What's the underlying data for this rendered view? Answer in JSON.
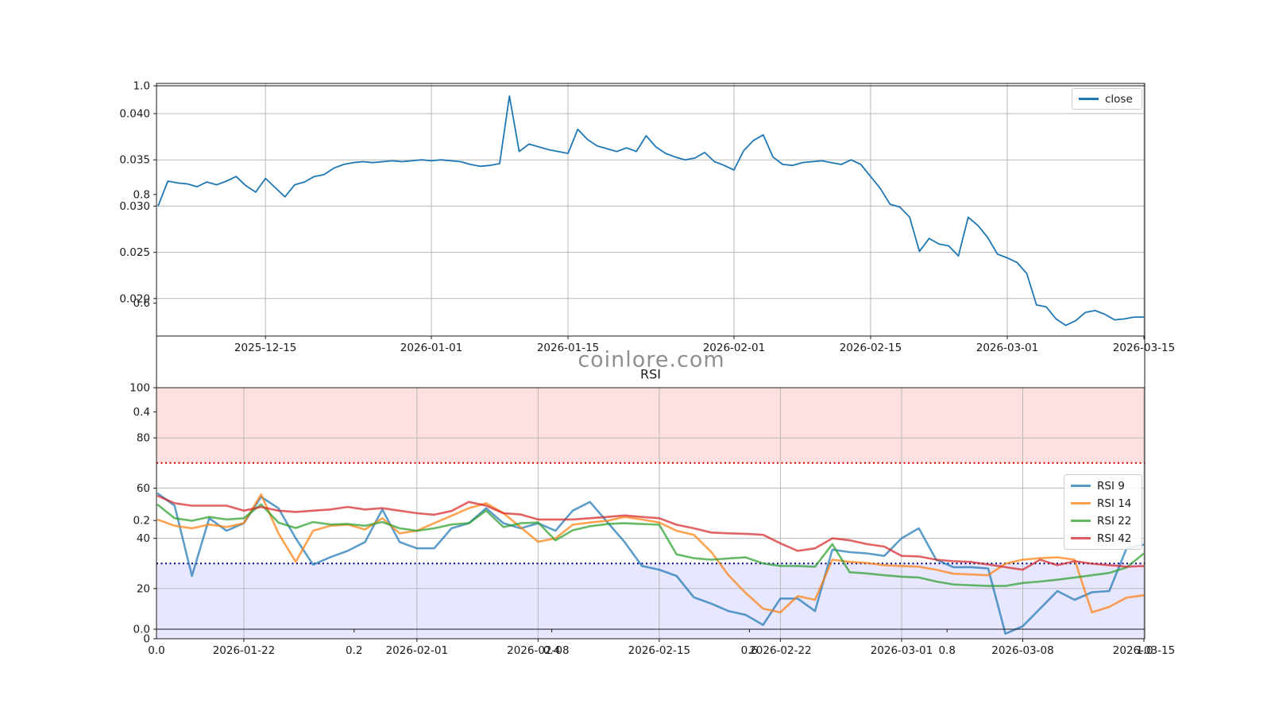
{
  "watermark": "coinlore.com",
  "colors": {
    "close_line": "#1f77b4",
    "rsi9_line": "#1f77b4",
    "rsi14_line": "#ff7f0e",
    "rsi22_line": "#2ca02c",
    "rsi42_line": "#d62728",
    "overbought_band": "rgba(255,0,0,0.12)",
    "oversold_band": "rgba(40,40,255,0.11)",
    "overbought_dotted_line": "#e60000",
    "oversold_dotted_line": "#00008b",
    "grid": "#b8b8b8",
    "spine": "#1a1a1a",
    "watermark_gray": "#8f8f8f"
  },
  "background_axis": {
    "x_ticks": [
      "0.0",
      "0.2",
      "0.4",
      "0.6",
      "0.8",
      "1.0"
    ],
    "y_ticks": [
      "0.0",
      "0.2",
      "0.4",
      "0.6",
      "0.8",
      "1.0"
    ],
    "fractions": [
      0,
      0.2,
      0.4,
      0.6,
      0.8,
      1.0
    ]
  },
  "chart_data": [
    {
      "type": "line",
      "title": "",
      "legend_position": "upper right",
      "grid": true,
      "x_start_date": "2025-12-04",
      "x_interval": "1 day",
      "x_end_date": "2026-03-15",
      "ylim": [
        0.01594,
        0.04327
      ],
      "yticks": [
        0.04,
        0.035,
        0.03,
        0.025,
        0.02
      ],
      "ytick_labels": [
        "0.040",
        "0.035",
        "0.030",
        "0.025",
        "0.020"
      ],
      "xtick_labels": [
        "2025-12-15",
        "2026-01-01",
        "2026-01-15",
        "2026-02-01",
        "2026-02-15",
        "2026-03-01",
        "2026-03-15"
      ],
      "xtick_indices": [
        11,
        28,
        42,
        59,
        73,
        87,
        101
      ],
      "series": [
        {
          "name": "close",
          "color": "#1f77b4",
          "values": [
            0.03,
            0.0327,
            0.0325,
            0.0324,
            0.0321,
            0.0326,
            0.0323,
            0.0327,
            0.0332,
            0.0322,
            0.0315,
            0.033,
            0.032,
            0.031,
            0.0323,
            0.0326,
            0.0332,
            0.0334,
            0.0341,
            0.0345,
            0.0347,
            0.0348,
            0.0347,
            0.0348,
            0.0349,
            0.0348,
            0.0349,
            0.035,
            0.0349,
            0.035,
            0.0349,
            0.0348,
            0.0345,
            0.0343,
            0.0344,
            0.0346,
            0.0419,
            0.0359,
            0.0367,
            0.0364,
            0.0361,
            0.0359,
            0.0357,
            0.0383,
            0.0372,
            0.0365,
            0.0362,
            0.0359,
            0.0363,
            0.0359,
            0.0376,
            0.0364,
            0.0357,
            0.0353,
            0.035,
            0.0352,
            0.0358,
            0.0348,
            0.0344,
            0.0339,
            0.036,
            0.0371,
            0.0377,
            0.0353,
            0.0345,
            0.0344,
            0.0347,
            0.0348,
            0.0349,
            0.0347,
            0.0345,
            0.035,
            0.0345,
            0.0332,
            0.0319,
            0.0302,
            0.0299,
            0.0288,
            0.0251,
            0.0265,
            0.0259,
            0.0257,
            0.0246,
            0.0288,
            0.0279,
            0.0266,
            0.0248,
            0.0244,
            0.0239,
            0.0227,
            0.0193,
            0.0191,
            0.0178,
            0.0171,
            0.0176,
            0.0185,
            0.0187,
            0.0183,
            0.0177,
            0.0178,
            0.018,
            0.018
          ]
        }
      ]
    },
    {
      "type": "line",
      "title": "RSI",
      "legend_position": "right",
      "grid": true,
      "x_start_date": "2026-01-17",
      "x_interval": "1 day",
      "x_end_date": "2026-03-15",
      "ylim": [
        0,
        100
      ],
      "yticks": [
        0,
        20,
        40,
        60,
        80,
        100
      ],
      "ytick_labels": [
        "0",
        "20",
        "40",
        "60",
        "80",
        "100"
      ],
      "xtick_labels": [
        "2026-01-22",
        "2026-02-01",
        "2026-02-08",
        "2026-02-15",
        "2026-02-22",
        "2026-03-01",
        "2026-03-08",
        "2026-03-15"
      ],
      "xtick_indices": [
        5,
        15,
        22,
        29,
        36,
        43,
        50,
        57
      ],
      "overbought_level": 70,
      "oversold_level": 30,
      "bands": [
        {
          "from": 70,
          "to": 100,
          "meaning": "overbought"
        },
        {
          "from": 0,
          "to": 30,
          "meaning": "oversold"
        }
      ],
      "series": [
        {
          "name": "RSI 9",
          "color": "#1f77b4",
          "values": [
            58,
            53,
            25,
            48,
            43,
            46,
            56.5,
            52,
            40,
            29.5,
            32.5,
            35,
            38.5,
            51.5,
            38.5,
            36,
            36,
            44,
            46,
            52,
            46,
            44,
            46,
            43,
            51,
            54.5,
            46.5,
            38.5,
            29,
            27.5,
            25,
            16.5,
            14,
            11,
            9.5,
            5.5,
            16,
            16,
            11,
            35.5,
            34.5,
            34,
            33,
            40,
            44,
            31.5,
            28.5,
            28.5,
            28,
            2,
            5,
            12,
            19,
            15.5,
            18.5,
            19,
            36,
            37.5
          ]
        },
        {
          "name": "RSI 14",
          "color": "#ff7f0e",
          "values": [
            47.5,
            45,
            44,
            45.5,
            44.5,
            46,
            57.5,
            42,
            30.6,
            43,
            45,
            45.5,
            43.5,
            48,
            42,
            43,
            46,
            49,
            52,
            54,
            50,
            44.4,
            38.6,
            40,
            45.4,
            46.3,
            47,
            48.5,
            47.5,
            46.3,
            43,
            41.4,
            34.6,
            25.3,
            18.2,
            12,
            10.5,
            17,
            15.5,
            31.5,
            30.6,
            30.2,
            29.3,
            29,
            28.7,
            27.5,
            25.9,
            25.6,
            25.3,
            29.9,
            31.5,
            32.1,
            32.4,
            31.5,
            10.5,
            12.7,
            16.4,
            17.3
          ]
        },
        {
          "name": "RSI 22",
          "color": "#2ca02c",
          "values": [
            53.5,
            48,
            47,
            48.5,
            47.5,
            48,
            53.5,
            46.3,
            44.1,
            46.5,
            45.5,
            45.7,
            45,
            46.5,
            44,
            43,
            44,
            45.5,
            46,
            51,
            44.5,
            46,
            46.3,
            39.2,
            43.2,
            44.8,
            45.7,
            46,
            45.7,
            45.4,
            33.6,
            32.1,
            31.5,
            32,
            32.4,
            30,
            29,
            29,
            28.7,
            37.7,
            26.5,
            26,
            25.3,
            24.7,
            24.4,
            22.8,
            21.6,
            21.3,
            21,
            21,
            22.2,
            22.8,
            23.5,
            24.4,
            25.3,
            26.2,
            28.4,
            34
          ]
        },
        {
          "name": "RSI 42",
          "color": "#d62728",
          "values": [
            57,
            54,
            53,
            53,
            53,
            51,
            52.5,
            51,
            50.5,
            51,
            51.5,
            52.5,
            51.5,
            52,
            51,
            50,
            49.4,
            50.9,
            54.5,
            53,
            50,
            49.5,
            47.5,
            47.5,
            47.5,
            48,
            48.5,
            49.1,
            48.5,
            48,
            45.4,
            44,
            42.3,
            42,
            41.8,
            41.4,
            38,
            35,
            36,
            40,
            39.2,
            37.7,
            36.7,
            33,
            32.8,
            31.5,
            30.9,
            30.6,
            29.6,
            28.5,
            27.5,
            31.5,
            29.3,
            30.9,
            29.9,
            29.3,
            28.7,
            29
          ]
        }
      ]
    }
  ]
}
